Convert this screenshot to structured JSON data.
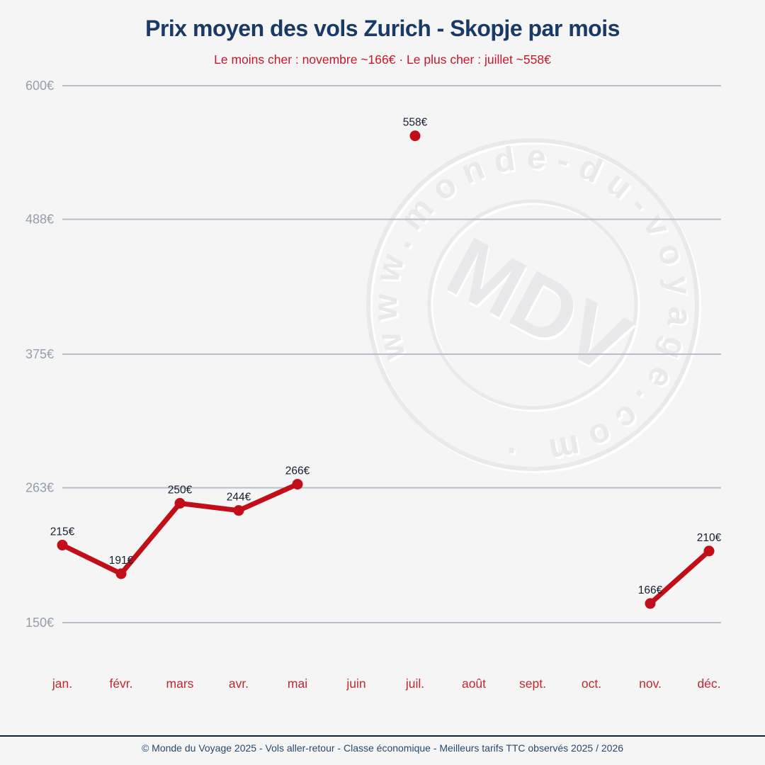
{
  "header": {
    "title": "Prix moyen des vols Zurich - Skopje par mois",
    "subtitle": "Le moins cher : novembre ~166€ · Le plus cher : juillet ~558€"
  },
  "watermark": {
    "circle_text": "www.monde-du-voyage.com ·",
    "center_text": "MDV"
  },
  "footer": {
    "text": "© Monde du Voyage 2025 - Vols aller-retour - Classe économique - Meilleurs tarifs TTC observés 2025 / 2026"
  },
  "colors": {
    "background": "#f5f5f6",
    "title": "#1a3a66",
    "subtitle": "#c2182b",
    "series": "#c10e18",
    "gridline": "#b8bec9",
    "y_tick_label": "#959eac",
    "month_label": "#c2272e",
    "point_label": "#15202f",
    "footer": "#27496d",
    "watermark": "#e9e9ec"
  },
  "chart_data": {
    "type": "line",
    "title": "Prix moyen des vols Zurich - Skopje par mois",
    "categories": [
      "jan.",
      "févr.",
      "mars",
      "avr.",
      "mai",
      "juin",
      "juil.",
      "août",
      "sept.",
      "oct.",
      "nov.",
      "déc."
    ],
    "values": [
      215,
      191,
      250,
      244,
      266,
      null,
      558,
      null,
      null,
      null,
      166,
      210
    ],
    "unit": "€",
    "xlabel": "",
    "ylabel": "",
    "ylim": [
      150,
      600
    ],
    "yticks": [
      600,
      488,
      375,
      263,
      150
    ],
    "ytick_labels": [
      "600€",
      "488€",
      "375€",
      "263€",
      "150€"
    ],
    "point_labels": [
      "215€",
      "191€",
      "250€",
      "244€",
      "266€",
      null,
      "558€",
      null,
      null,
      null,
      "166€",
      "210€"
    ],
    "grid": true,
    "legend": false,
    "min_note": {
      "month": "novembre",
      "value": 166
    },
    "max_note": {
      "month": "juillet",
      "value": 558
    }
  }
}
